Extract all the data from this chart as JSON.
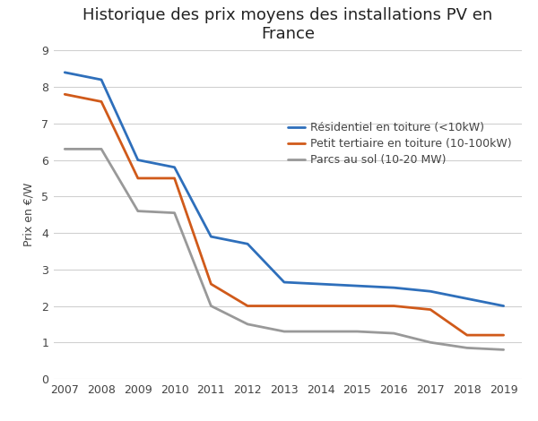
{
  "title": "Historique des prix moyens des installations PV en\nFrance",
  "xlabel": "",
  "ylabel": "Prix en €/W",
  "years": [
    2007,
    2008,
    2009,
    2010,
    2011,
    2012,
    2013,
    2014,
    2015,
    2016,
    2017,
    2018,
    2019
  ],
  "series": [
    {
      "label": "Résidentiel en toiture (<10kW)",
      "color": "#2e6fbb",
      "linewidth": 2.0,
      "values": [
        8.4,
        8.2,
        6.0,
        5.8,
        3.9,
        3.7,
        2.65,
        2.6,
        2.55,
        2.5,
        2.4,
        2.2,
        2.0
      ]
    },
    {
      "label": "Petit tertiaire en toiture (10-100kW)",
      "color": "#d05a1a",
      "linewidth": 2.0,
      "values": [
        7.8,
        7.6,
        5.5,
        5.5,
        2.6,
        2.0,
        2.0,
        2.0,
        2.0,
        2.0,
        1.9,
        1.2,
        1.2
      ]
    },
    {
      "label": "Parcs au sol (10-20 MW)",
      "color": "#999999",
      "linewidth": 2.0,
      "values": [
        6.3,
        6.3,
        4.6,
        4.55,
        2.0,
        1.5,
        1.3,
        1.3,
        1.3,
        1.25,
        1.0,
        0.85,
        0.8
      ]
    }
  ],
  "ylim": [
    0,
    9
  ],
  "yticks": [
    0,
    1,
    2,
    3,
    4,
    5,
    6,
    7,
    8,
    9
  ],
  "background_color": "#ffffff",
  "grid_color": "#d0d0d0",
  "title_fontsize": 13,
  "label_fontsize": 9,
  "tick_fontsize": 9,
  "legend_fontsize": 9
}
